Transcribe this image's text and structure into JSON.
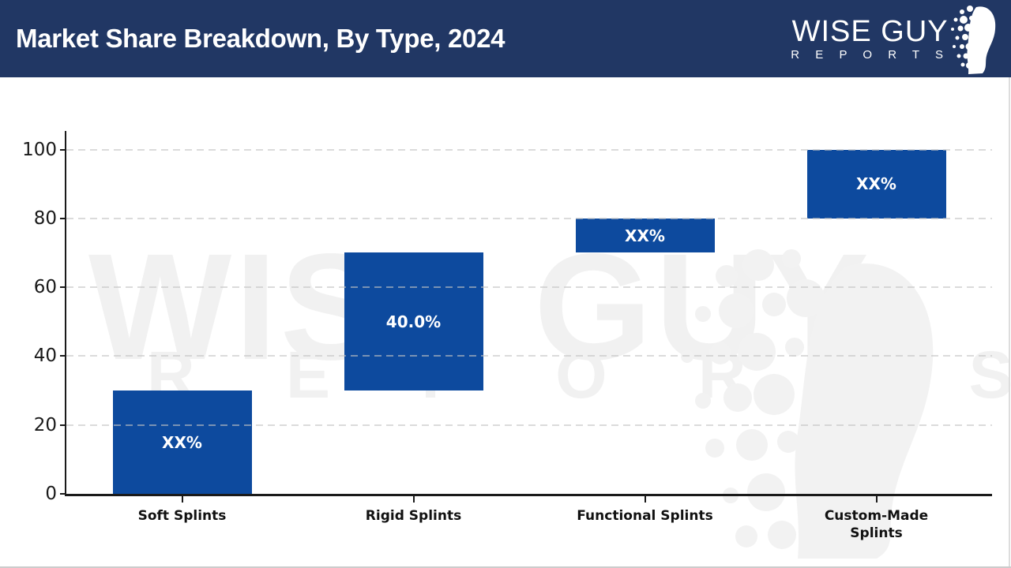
{
  "header": {
    "title": "Market Share Breakdown, By Type, 2024",
    "logo": {
      "wordmark": "WISE GUY",
      "subtext": "R E P O R T S",
      "face_icon": "dotted-face-profile"
    }
  },
  "watermark": {
    "line1": "WISE GUY",
    "line2": "R E P O R T S",
    "face_icon": "dotted-face-profile"
  },
  "colors": {
    "header_bg": "#213764",
    "bar": "#0d4a9e",
    "axis": "#1a1a1a",
    "grid_base": "#c3c3c3",
    "bar_label_text": "#ffffff",
    "watermark": "#f1f1f1",
    "page_bg": "#ffffff"
  },
  "chart_data": {
    "type": "bar",
    "subtype": "waterfall",
    "title": "Market Share Breakdown, By Type, 2024",
    "categories": [
      "Soft Splints",
      "Rigid Splints",
      "Functional Splints",
      "Custom-Made Splints"
    ],
    "tick_labels": [
      "Soft Splints",
      "Rigid Splints",
      "Functional Splints",
      "Custom-Made\nSplints"
    ],
    "bars": [
      {
        "category": "Soft Splints",
        "start": 0,
        "end": 30,
        "value_label": "XX%"
      },
      {
        "category": "Rigid Splints",
        "start": 30,
        "end": 70,
        "value_label": "40.0%"
      },
      {
        "category": "Functional Splints",
        "start": 70,
        "end": 80,
        "value_label": "XX%"
      },
      {
        "category": "Custom-Made Splints",
        "start": 80,
        "end": 100,
        "value_label": "XX%"
      }
    ],
    "ylim": [
      0,
      100
    ],
    "yticks": [
      0,
      20,
      40,
      60,
      80,
      100
    ],
    "xlabel": "",
    "ylabel": "",
    "grid": "horizontal-dashed",
    "legend": "none",
    "bar_color": "#0d4a9e"
  }
}
